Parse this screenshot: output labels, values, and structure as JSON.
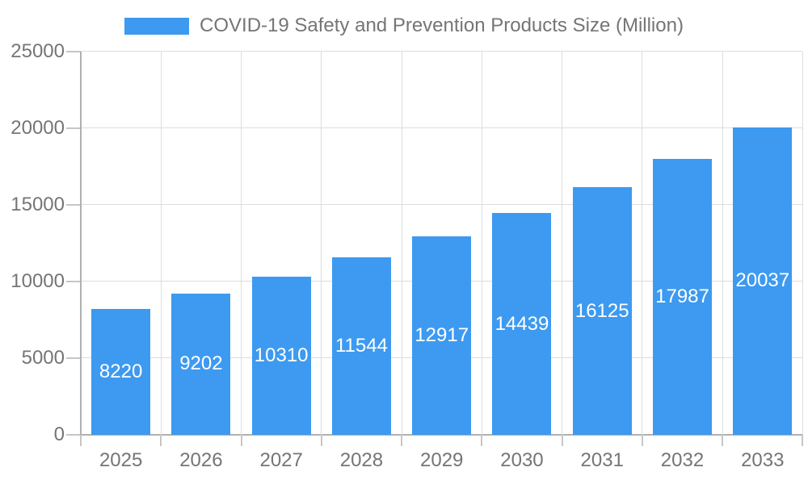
{
  "chart_data": {
    "type": "bar",
    "title": "COVID-19 Safety and Prevention Products Size (Million)",
    "categories": [
      "2025",
      "2026",
      "2027",
      "2028",
      "2029",
      "2030",
      "2031",
      "2032",
      "2033"
    ],
    "values": [
      8220,
      9202,
      10310,
      11544,
      12917,
      14439,
      16125,
      17987,
      20037
    ],
    "xlabel": "",
    "ylabel": "",
    "ylim": [
      0,
      25000
    ],
    "yticks": [
      0,
      5000,
      10000,
      15000,
      20000,
      25000
    ],
    "grid": true,
    "legend_position": "top",
    "bar_label_position": "inside-center",
    "colors": {
      "bar": "#3d9af0",
      "bar_label": "#ffffff",
      "axis_text": "#757575",
      "grid_line": "#dddddd",
      "axis_line": "#b0b0b0",
      "tick_line": "#c6c6c6",
      "background": "#ffffff"
    }
  }
}
